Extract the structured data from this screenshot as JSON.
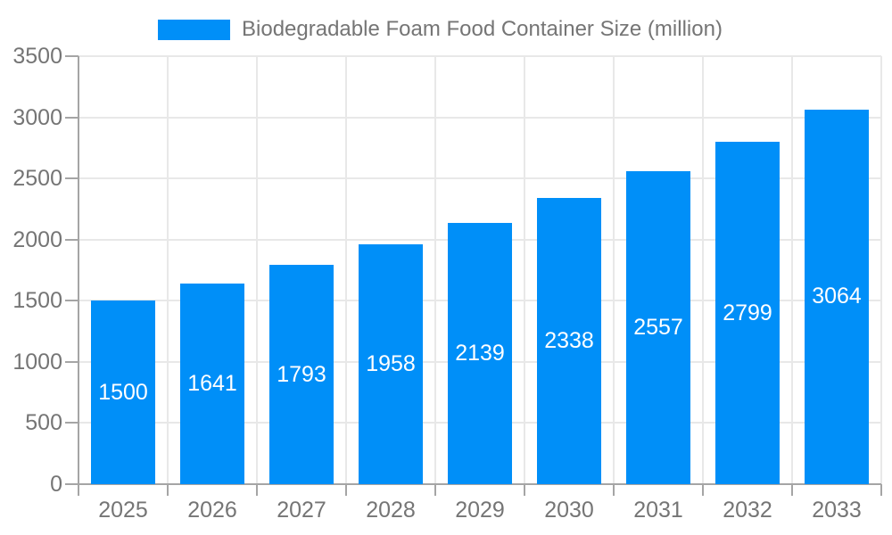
{
  "legend": {
    "label": "Biodegradable Foam Food Container Size (million)"
  },
  "colors": {
    "bar": "#008FF8",
    "axis_label": "#757575",
    "legend_text": "#757575",
    "grid": "#e8e8e8",
    "axis_line": "#a5a5a5",
    "tick": "#a5a5a5",
    "value_label": "#ffffff",
    "background": "#ffffff"
  },
  "chart_data": {
    "type": "bar",
    "title": "Biodegradable Foam Food Container Size (million)",
    "categories": [
      "2025",
      "2026",
      "2027",
      "2028",
      "2029",
      "2030",
      "2031",
      "2032",
      "2033"
    ],
    "values": [
      1500,
      1641,
      1793,
      1958,
      2139,
      2338,
      2557,
      2799,
      3064
    ],
    "series": [
      {
        "name": "Biodegradable Foam Food Container Size (million)",
        "values": [
          1500,
          1641,
          1793,
          1958,
          2139,
          2338,
          2557,
          2799,
          3064
        ]
      }
    ],
    "xlabel": "",
    "ylabel": "",
    "ylim": [
      0,
      3500
    ],
    "yticks": [
      0,
      500,
      1000,
      1500,
      2000,
      2500,
      3000,
      3500
    ],
    "ytick_labels": [
      "0",
      "500",
      "1000",
      "1500",
      "2000",
      "2500",
      "3000",
      "3500"
    ],
    "grid": true,
    "grid_vertical": true,
    "legend_position": "top",
    "value_labels": "inside-center"
  }
}
